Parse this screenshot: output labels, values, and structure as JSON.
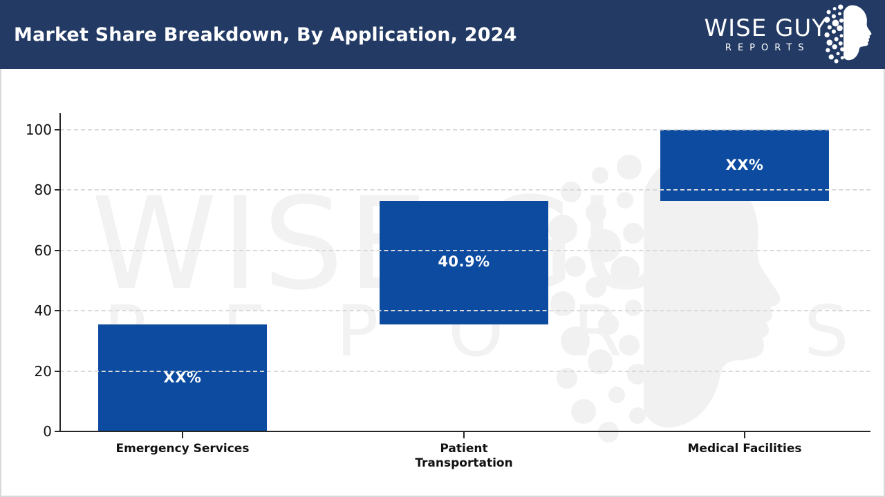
{
  "header": {
    "title": "Market Share Breakdown, By Application, 2024",
    "logo": {
      "name": "WISE GUY",
      "sub": "REPORTS"
    }
  },
  "watermark": {
    "big": "WISE GUY",
    "sub": "R E P O R T S"
  },
  "chart_data": {
    "type": "bar",
    "subtype": "segmented-market-share",
    "title": "Market Share Breakdown, By Application, 2024",
    "categories": [
      "Emergency Services",
      "Patient Transportation",
      "Medical Facilities"
    ],
    "bars": [
      {
        "category": "Emergency Services",
        "start": 0,
        "end": 35.4,
        "label": "XX%"
      },
      {
        "category": "Patient Transportation",
        "start": 35.5,
        "end": 76.4,
        "label": "40.9%"
      },
      {
        "category": "Medical Facilities",
        "start": 76.4,
        "end": 100,
        "label": "XX%"
      }
    ],
    "ylim": [
      0,
      100
    ],
    "yticks": [
      0,
      20,
      40,
      60,
      80,
      100
    ],
    "grid": "horizontal-dashed",
    "legend": "none",
    "bar_color": "#0c4b9f",
    "bar_label_color": "#ffffff",
    "header_bg": "#223a64",
    "gridline_color": "#d9d9d9",
    "watermark_color": "#f2f2f2"
  }
}
